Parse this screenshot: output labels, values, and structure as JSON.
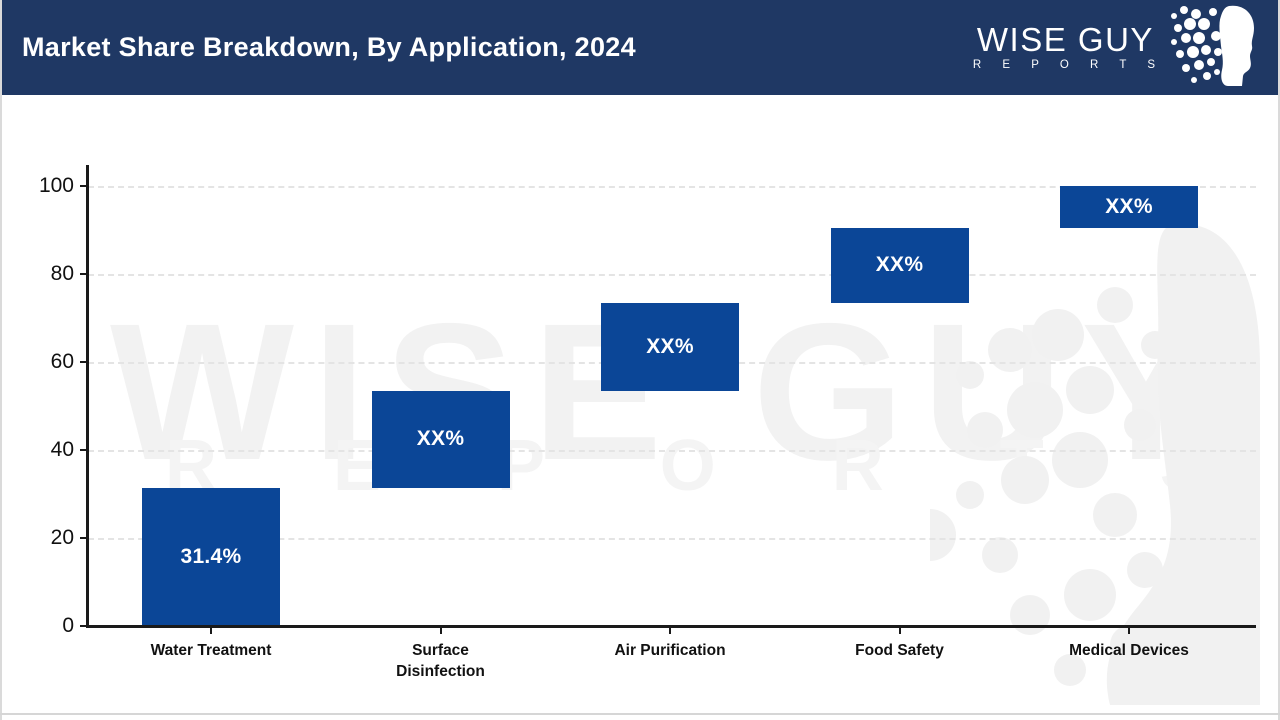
{
  "colors": {
    "header_bg": "#1f3864",
    "bar_fill": "#0b4697",
    "bar_label": "#ffffff",
    "axis": "#1a1a1a",
    "gridline": "#e4e4e4",
    "watermark": "#f2f2f2"
  },
  "header": {
    "title": "Market Share Breakdown, By Application, 2024",
    "brand_line1": "WISE GUY",
    "brand_line2": "R E P O R T S",
    "logo_icon": "wiseguy-head-icon"
  },
  "watermark": {
    "line1": "WISE GUY",
    "line2": "R E P O R T S"
  },
  "chart_data": {
    "type": "bar",
    "subtype": "waterfall",
    "title": "Market Share Breakdown, By Application, 2024",
    "xlabel": "",
    "ylabel": "",
    "ylim": [
      0,
      105
    ],
    "yticks": [
      0,
      20,
      40,
      60,
      80,
      100
    ],
    "grid": "horizontal-dashed",
    "legend": "none",
    "categories": [
      "Water Treatment",
      "Surface Disinfection",
      "Air Purification",
      "Food Safety",
      "Medical Devices"
    ],
    "category_lines": [
      [
        "Water Treatment"
      ],
      [
        "Surface",
        "Disinfection"
      ],
      [
        "Air Purification"
      ],
      [
        "Food Safety"
      ],
      [
        "Medical Devices"
      ]
    ],
    "segments": [
      {
        "category": "Water Treatment",
        "start": 0,
        "end": 31.4,
        "value": 31.4,
        "label": "31.4%"
      },
      {
        "category": "Surface Disinfection",
        "start": 31.4,
        "end": 53.5,
        "value": 22.1,
        "label": "XX%"
      },
      {
        "category": "Air Purification",
        "start": 53.5,
        "end": 73.5,
        "value": 20.0,
        "label": "XX%"
      },
      {
        "category": "Food Safety",
        "start": 73.5,
        "end": 90.5,
        "value": 17.0,
        "label": "XX%"
      },
      {
        "category": "Medical Devices",
        "start": 90.5,
        "end": 100.0,
        "value": 9.5,
        "label": "XX%"
      }
    ]
  }
}
